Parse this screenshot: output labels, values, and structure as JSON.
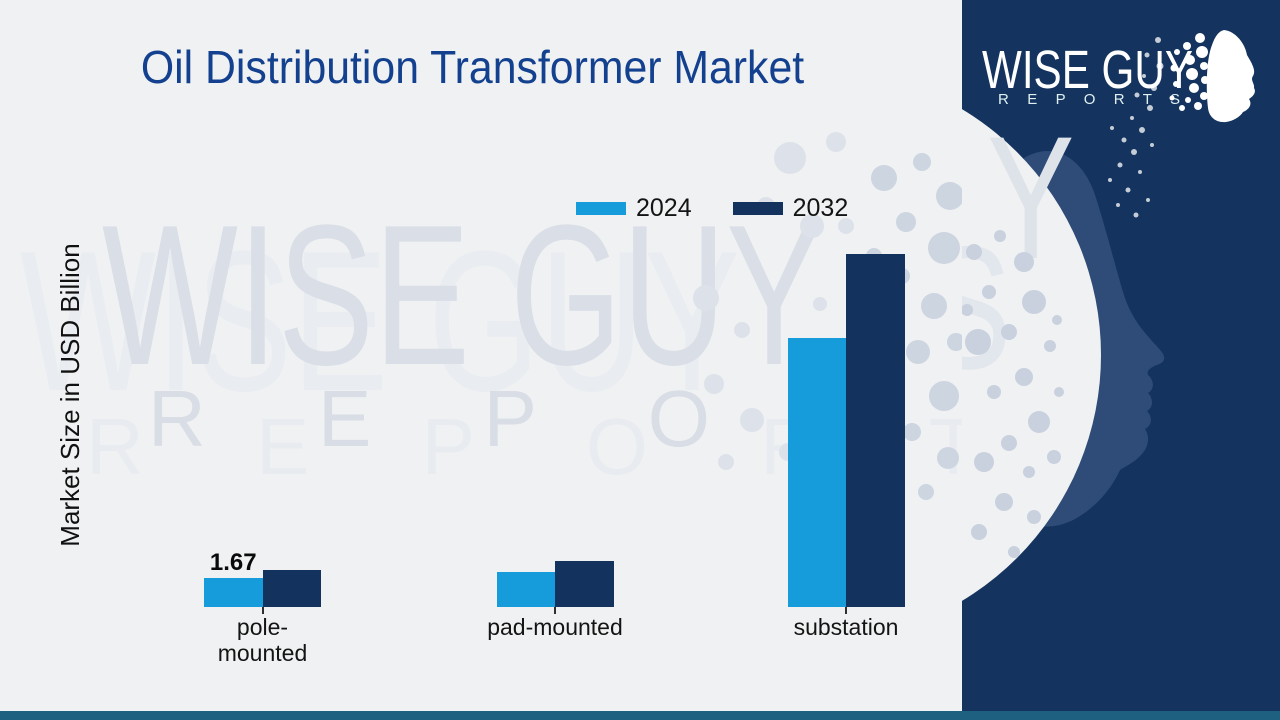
{
  "title": "Oil Distribution Transformer Market",
  "ylabel": "Market Size in USD Billion",
  "legend": [
    {
      "label": "2024",
      "color": "#169cdb"
    },
    {
      "label": "2032",
      "color": "#13335e"
    }
  ],
  "chart_data": {
    "type": "bar",
    "title": "Oil Distribution Transformer Market",
    "ylabel": "Market Size in USD Billion",
    "categories": [
      "pole-mounted",
      "pad-mounted",
      "substation"
    ],
    "category_label_lines": [
      [
        "pole-",
        "mounted"
      ],
      [
        "pad-mounted"
      ],
      [
        "substation"
      ]
    ],
    "series": [
      {
        "name": "2024",
        "color": "#169cdb",
        "values": [
          1.67,
          2.02,
          15.49
        ]
      },
      {
        "name": "2032",
        "color": "#13335e",
        "values": [
          2.13,
          2.65,
          20.33
        ]
      }
    ],
    "data_labels": [
      {
        "series_index": 0,
        "category_index": 0,
        "text": "1.67"
      }
    ],
    "ylim": [
      0,
      22
    ],
    "grid": false,
    "legend_position": "top-right"
  },
  "watermark": {
    "line1": "WISE GUY",
    "line2": "R E P O R T S",
    "circle_letter_y": "Y",
    "circle_letter_s": "S"
  },
  "logo": {
    "line1": "WISE GUY",
    "line2": "R E P O R T S"
  },
  "colors": {
    "background": "#f0f1f2",
    "title_blue": "#13418f",
    "series_2024_blue": "#169cdb",
    "series_2032_navy": "#13335e",
    "panel_navy": "#14335e",
    "panel_face": "#2e4c77",
    "footer_teal": "#1e6080",
    "watermark_gray": "#d9dee7",
    "dot_gray": "#c9d1de"
  }
}
